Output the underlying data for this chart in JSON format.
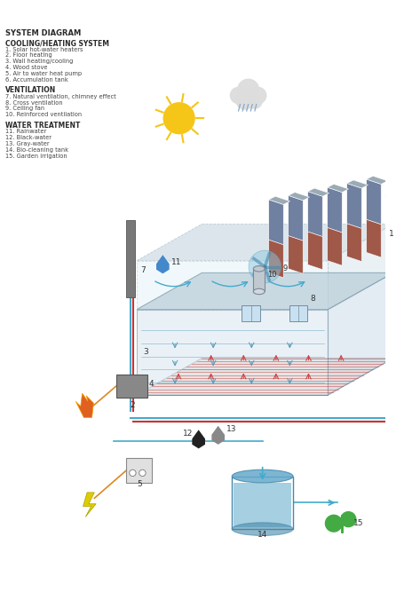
{
  "title": "SYSTEM DIAGRAM",
  "legend_sections": [
    {
      "heading": "COOLING/HEATING SYSTEM",
      "items": [
        "1. Solar hot-water heaters",
        "2. Floor heating",
        "3. Wall heating/cooling",
        "4. Wood stove",
        "5. Air to water heat pump",
        "6. Accumulation tank"
      ]
    },
    {
      "heading": "VENTILATION",
      "items": [
        "7. Natural ventilation, chimney effect",
        "8. Cross ventilation",
        "9. Ceiling fan",
        "10. Reinforced ventilation"
      ]
    },
    {
      "heading": "WATER TREATMENT",
      "items": [
        "11. Rainwater",
        "12. Black-water",
        "13. Gray-water",
        "14. Bio-cleaning tank",
        "15. Garden irrigation"
      ]
    }
  ],
  "colors": {
    "background": "#ffffff",
    "text_main": "#2a2a2a",
    "text_label": "#444444",
    "red_pipe": "#cc3333",
    "cyan_pipe": "#44aacc",
    "orange_line": "#dd8822",
    "building_face_front": "#dce8f0",
    "building_face_side": "#c8d8e8",
    "building_face_top": "#b8ccd8",
    "building_edge": "#7799aa",
    "solar_panel_face": "#8090a0",
    "solar_panel_top": "#a0b0b8",
    "solar_panel_warm": "#a05040",
    "floor_fill": "#f0ddd0",
    "floor_line": "#cc4444",
    "wall_fill": "#d0e8f8",
    "wall_line": "#5599bb",
    "sun_yellow": "#f5c518",
    "cloud_white": "#dddddd",
    "rain_blue": "#88aacc",
    "tank_red": "#cc4444",
    "tank_blue": "#5588aa",
    "tank_water": "#88c0d8",
    "stove_gray": "#777777",
    "fire_orange": "#dd6622",
    "lightning_yellow": "#ddcc00",
    "plant_green": "#44aa44",
    "drop_blue": "#4488cc",
    "drop_black": "#222222",
    "drop_gray": "#888888"
  }
}
